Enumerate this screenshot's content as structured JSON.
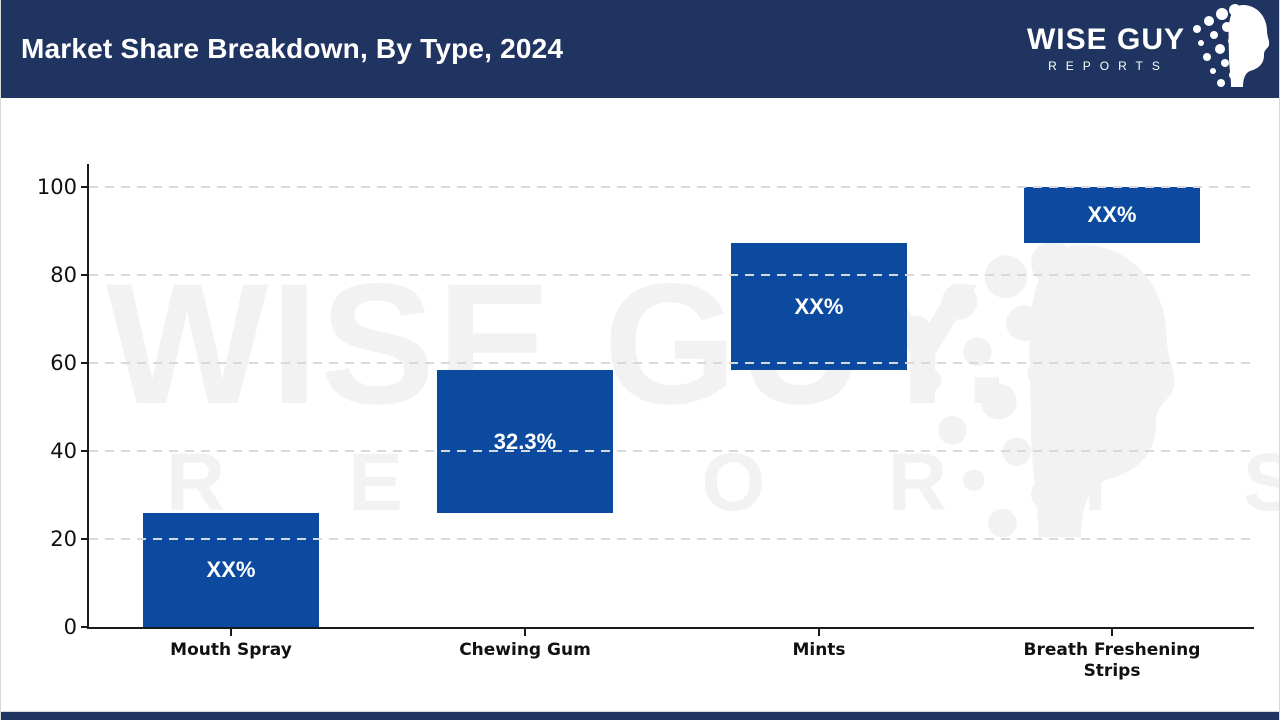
{
  "header": {
    "title": "Market Share Breakdown, By Type, 2024",
    "logo": {
      "line1": "WISE GUY",
      "line2": "REPORTS",
      "icon": "dotted-face-profile-icon"
    }
  },
  "watermark": {
    "line1": "WISE GUY.",
    "line2": "R E P O R T S",
    "icon": "dotted-face-profile-watermark"
  },
  "colors": {
    "header_bg": "#203461",
    "bar": "#0b4a9e",
    "axis": "#1a1a1a",
    "gridline": "#d9d9d9",
    "tick_text": "#111111",
    "bar_label_text": "#ffffff",
    "watermark": "#f2f2f2"
  },
  "chart_data": {
    "type": "bar",
    "subtype": "waterfall",
    "title": "Market Share Breakdown, By Type, 2024",
    "categories": [
      "Mouth Spray",
      "Chewing Gum",
      "Mints",
      "Breath Freshening Strips"
    ],
    "bars": [
      {
        "category": "Mouth Spray",
        "start": 0,
        "end": 26,
        "value": 26,
        "label": "XX%"
      },
      {
        "category": "Chewing Gum",
        "start": 26,
        "end": 58.3,
        "value": 32.3,
        "label": "32.3%"
      },
      {
        "category": "Mints",
        "start": 58.3,
        "end": 87.3,
        "value": 29,
        "label": "XX%"
      },
      {
        "category": "Breath Freshening Strips",
        "start": 87.3,
        "end": 100,
        "value": 12.7,
        "label": "XX%"
      }
    ],
    "xlabel": "",
    "ylabel": "",
    "ylim": [
      0,
      100
    ],
    "yticks": [
      0,
      20,
      40,
      60,
      80,
      100
    ],
    "grid": "horizontal-dashed-over-bars",
    "legend": "none"
  }
}
